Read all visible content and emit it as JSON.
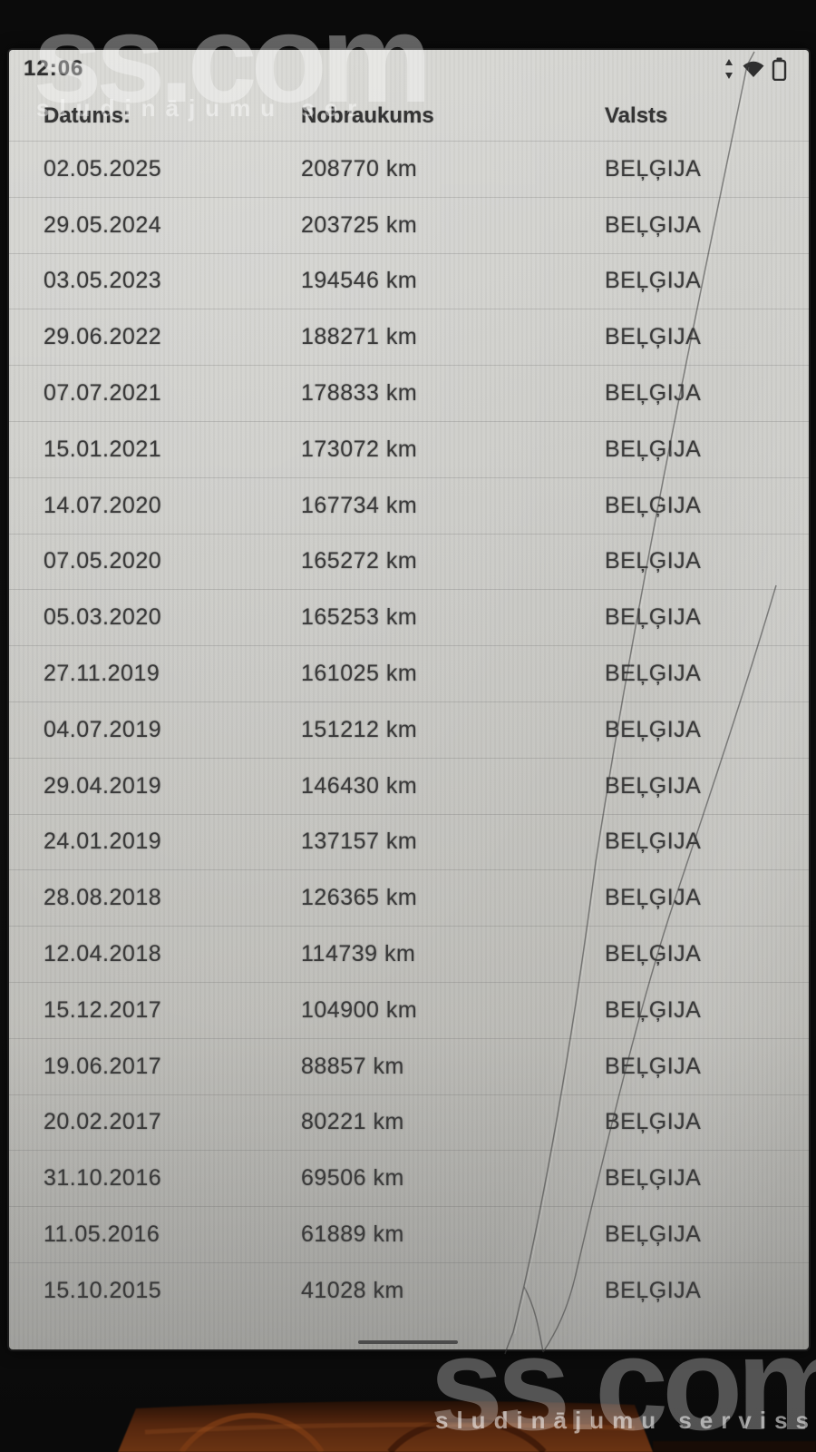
{
  "status_bar": {
    "time": "12:06",
    "icons": [
      "data-transfer-icon",
      "wifi-icon",
      "battery-icon"
    ]
  },
  "watermark": {
    "brand": "ss.com",
    "tagline_top": "sludinājumu ser",
    "tagline_bottom": "sludinājumu serviss"
  },
  "table": {
    "headers": [
      "Datums:",
      "Nobraukums",
      "Valsts"
    ],
    "rows": [
      {
        "date": "02.05.2025",
        "mileage": "208770 km",
        "country": "BEĻĢIJA"
      },
      {
        "date": "29.05.2024",
        "mileage": "203725 km",
        "country": "BEĻĢIJA"
      },
      {
        "date": "03.05.2023",
        "mileage": "194546 km",
        "country": "BEĻĢIJA"
      },
      {
        "date": "29.06.2022",
        "mileage": "188271 km",
        "country": "BEĻĢIJA"
      },
      {
        "date": "07.07.2021",
        "mileage": "178833 km",
        "country": "BEĻĢIJA"
      },
      {
        "date": "15.01.2021",
        "mileage": "173072 km",
        "country": "BEĻĢIJA"
      },
      {
        "date": "14.07.2020",
        "mileage": "167734 km",
        "country": "BEĻĢIJA"
      },
      {
        "date": "07.05.2020",
        "mileage": "165272 km",
        "country": "BEĻĢIJA"
      },
      {
        "date": "05.03.2020",
        "mileage": "165253 km",
        "country": "BEĻĢIJA"
      },
      {
        "date": "27.11.2019",
        "mileage": "161025 km",
        "country": "BEĻĢIJA"
      },
      {
        "date": "04.07.2019",
        "mileage": "151212 km",
        "country": "BEĻĢIJA"
      },
      {
        "date": "29.04.2019",
        "mileage": "146430 km",
        "country": "BEĻĢIJA"
      },
      {
        "date": "24.01.2019",
        "mileage": "137157 km",
        "country": "BEĻĢIJA"
      },
      {
        "date": "28.08.2018",
        "mileage": "126365 km",
        "country": "BEĻĢIJA"
      },
      {
        "date": "12.04.2018",
        "mileage": "114739 km",
        "country": "BEĻĢIJA"
      },
      {
        "date": "15.12.2017",
        "mileage": "104900 km",
        "country": "BEĻĢIJA"
      },
      {
        "date": "19.06.2017",
        "mileage": "88857 km",
        "country": "BEĻĢIJA"
      },
      {
        "date": "20.02.2017",
        "mileage": "80221 km",
        "country": "BEĻĢIJA"
      },
      {
        "date": "31.10.2016",
        "mileage": "69506 km",
        "country": "BEĻĢIJA"
      },
      {
        "date": "11.05.2016",
        "mileage": "61889 km",
        "country": "BEĻĢIJA"
      },
      {
        "date": "15.10.2015",
        "mileage": "41028 km",
        "country": "BEĻĢIJA"
      }
    ]
  },
  "colors": {
    "screen_bg": "#cdcdc9",
    "text": "#3a3a3a",
    "surround": "#0b0b0b",
    "wood": "#5b2a10",
    "watermark": "#ffffff"
  }
}
